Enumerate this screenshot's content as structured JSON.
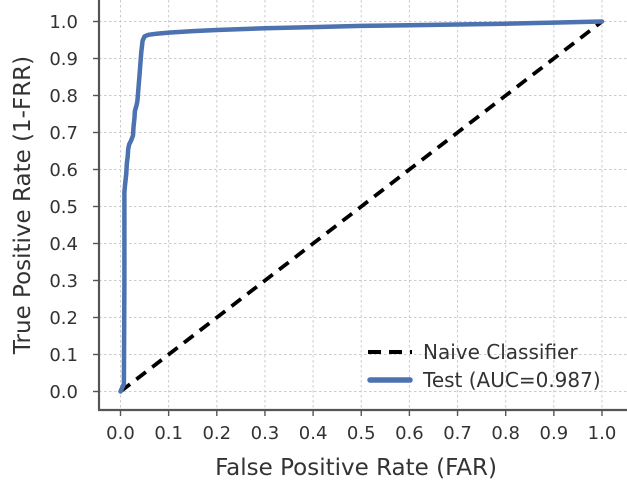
{
  "chart_data": {
    "type": "line",
    "title": "",
    "xlabel": "False Positive Rate (FAR)",
    "ylabel": "True Positive Rate (1-FRR)",
    "x_tick_labels": [
      "0.0",
      "0.1",
      "0.2",
      "0.3",
      "0.4",
      "0.5",
      "0.6",
      "0.7",
      "0.8",
      "0.9",
      "1.0"
    ],
    "y_tick_labels": [
      "0.0",
      "0.1",
      "0.2",
      "0.3",
      "0.4",
      "0.5",
      "0.6",
      "0.7",
      "0.8",
      "0.9",
      "1.0"
    ],
    "xlim": [
      -0.045,
      1.052
    ],
    "ylim": [
      -0.05,
      1.058
    ],
    "grid": "dashed",
    "legend_position": "lower right",
    "auc": 0.987,
    "series": [
      {
        "name": "Naive Classifier",
        "line_style": "dashed",
        "color": "#000000",
        "points": [
          [
            0.0,
            0.0
          ],
          [
            1.0,
            1.0
          ]
        ]
      },
      {
        "name": "Test (AUC=0.987)",
        "line_style": "solid",
        "color": "#4C72B0",
        "points": [
          [
            0.0,
            0.0
          ],
          [
            0.007,
            0.02
          ],
          [
            0.008,
            0.3
          ],
          [
            0.008,
            0.54
          ],
          [
            0.01,
            0.565
          ],
          [
            0.012,
            0.59
          ],
          [
            0.013,
            0.615
          ],
          [
            0.015,
            0.635
          ],
          [
            0.016,
            0.655
          ],
          [
            0.018,
            0.668
          ],
          [
            0.022,
            0.678
          ],
          [
            0.026,
            0.692
          ],
          [
            0.027,
            0.715
          ],
          [
            0.029,
            0.74
          ],
          [
            0.03,
            0.758
          ],
          [
            0.033,
            0.772
          ],
          [
            0.035,
            0.785
          ],
          [
            0.037,
            0.815
          ],
          [
            0.04,
            0.865
          ],
          [
            0.043,
            0.915
          ],
          [
            0.046,
            0.948
          ],
          [
            0.05,
            0.96
          ],
          [
            0.058,
            0.964
          ],
          [
            0.075,
            0.967
          ],
          [
            0.1,
            0.97
          ],
          [
            0.15,
            0.974
          ],
          [
            0.2,
            0.977
          ],
          [
            0.3,
            0.982
          ],
          [
            0.4,
            0.985
          ],
          [
            0.5,
            0.988
          ],
          [
            0.6,
            0.99
          ],
          [
            0.7,
            0.992
          ],
          [
            0.8,
            0.994
          ],
          [
            0.9,
            0.997
          ],
          [
            1.0,
            1.0
          ]
        ]
      }
    ],
    "colors": {
      "curve": "#4C72B0",
      "naive": "#000000",
      "grid": "#cbcbcb",
      "spine": "#555555",
      "text": "#333333",
      "background": "#ffffff"
    }
  }
}
